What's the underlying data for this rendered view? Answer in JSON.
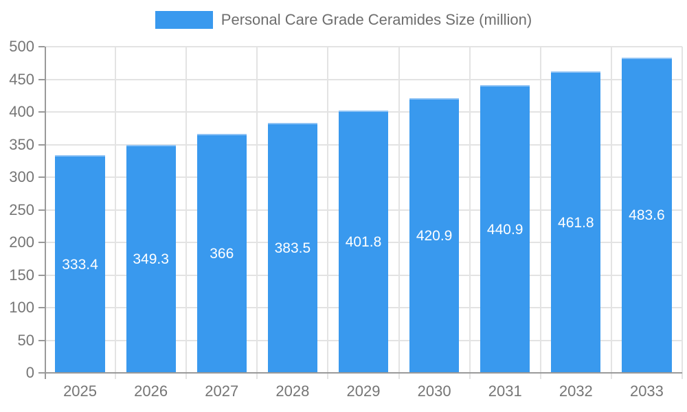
{
  "chart_data": {
    "type": "bar",
    "title": "Personal Care Grade Ceramides Size (million)",
    "legend": {
      "label": "Personal Care Grade Ceramides Size (million)",
      "position": "top"
    },
    "categories": [
      "2025",
      "2026",
      "2027",
      "2028",
      "2029",
      "2030",
      "2031",
      "2032",
      "2033"
    ],
    "series": [
      {
        "name": "Personal Care Grade Ceramides Size (million)",
        "values": [
          333.4,
          349.3,
          366,
          383.5,
          401.8,
          420.9,
          440.9,
          461.8,
          483.6
        ]
      }
    ],
    "value_labels": [
      "333.4",
      "349.3",
      "366",
      "383.5",
      "401.8",
      "420.9",
      "440.9",
      "461.8",
      "483.6"
    ],
    "xlabel": "",
    "ylabel": "",
    "ylim": [
      0,
      500
    ],
    "ytick_step": 50,
    "ytick_labels": [
      "0",
      "50",
      "100",
      "150",
      "200",
      "250",
      "300",
      "350",
      "400",
      "450",
      "500"
    ],
    "grid": true,
    "colors": {
      "bar": "#3999EE",
      "bar_border": "#8fc3f5",
      "bar_label": "#ffffff",
      "grid": "#e3e3e3",
      "axis": "#999999",
      "tick_label": "#757575",
      "legend_text": "#6e6e6e"
    }
  }
}
